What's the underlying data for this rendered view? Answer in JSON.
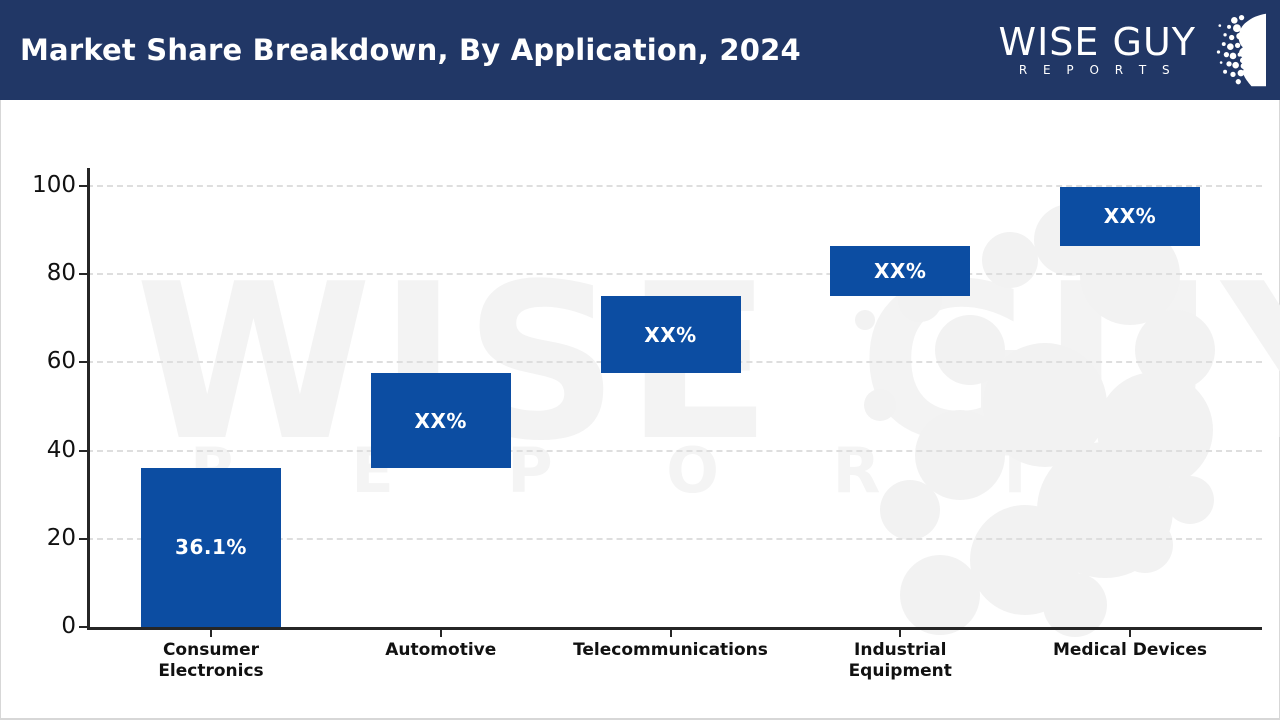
{
  "header": {
    "title": "Market Share Breakdown, By Application, 2024",
    "bg_color": "#213766"
  },
  "logo": {
    "line1": "WISE GUY",
    "line2": "R E P O R T S"
  },
  "watermark": {
    "line1": "WISE GUY",
    "line2": "R E P O R T S"
  },
  "chart_data": {
    "type": "bar",
    "variant": "waterfall",
    "title": "Market Share Breakdown, By Application, 2024",
    "xlabel": "",
    "ylabel": "",
    "categories": [
      "Consumer Electronics",
      "Automotive",
      "Telecommunications",
      "Industrial Equipment",
      "Medical Devices"
    ],
    "category_label_lines": [
      [
        "Consumer",
        "Electronics"
      ],
      [
        "Automotive"
      ],
      [
        "Telecommunications"
      ],
      [
        "Industrial",
        "Equipment"
      ],
      [
        "Medical Devices"
      ]
    ],
    "segments": [
      {
        "category": "Consumer Electronics",
        "start": 0,
        "end": 36.1,
        "label": "36.1%"
      },
      {
        "category": "Automotive",
        "start": 36.1,
        "end": 57.5,
        "label": "XX%"
      },
      {
        "category": "Telecommunications",
        "start": 57.5,
        "end": 75.0,
        "label": "XX%"
      },
      {
        "category": "Industrial Equipment",
        "start": 75.0,
        "end": 86.5,
        "label": "XX%"
      },
      {
        "category": "Medical Devices",
        "start": 86.5,
        "end": 99.7,
        "label": "XX%"
      }
    ],
    "yticks": [
      0,
      20,
      40,
      60,
      80,
      100
    ],
    "ylim": [
      0,
      104
    ],
    "bar_color": "#0c4da2",
    "bar_label_color": "#ffffff",
    "grid": "horizontal-dashed",
    "legend": "none"
  }
}
